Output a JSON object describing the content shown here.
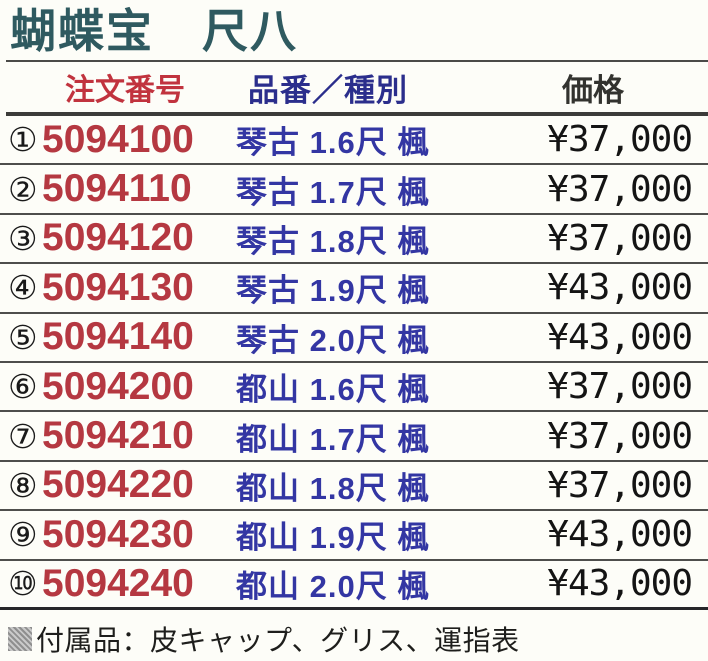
{
  "page": {
    "title": "蝴蝶宝　尺八",
    "background_color": "#fdfdf8",
    "title_color": "#2f5a60"
  },
  "table": {
    "headers": {
      "order_no": "注文番号",
      "product": "品番／種別",
      "price": "価格"
    },
    "colors": {
      "header_order_no": "#c1333e",
      "header_product": "#2b2e8c",
      "header_price": "#33332f",
      "row_order_no": "#b53841",
      "row_product": "#3336a3",
      "row_price": "#141414",
      "rule_line": "#4e4e4c"
    },
    "rows": [
      {
        "index": "①",
        "order_no": "5094100",
        "product": "琴古 1.6尺 楓",
        "price": "¥37,000"
      },
      {
        "index": "②",
        "order_no": "5094110",
        "product": "琴古 1.7尺 楓",
        "price": "¥37,000"
      },
      {
        "index": "③",
        "order_no": "5094120",
        "product": "琴古 1.8尺 楓",
        "price": "¥37,000"
      },
      {
        "index": "④",
        "order_no": "5094130",
        "product": "琴古 1.9尺 楓",
        "price": "¥43,000"
      },
      {
        "index": "⑤",
        "order_no": "5094140",
        "product": "琴古 2.0尺 楓",
        "price": "¥43,000"
      },
      {
        "index": "⑥",
        "order_no": "5094200",
        "product": "都山 1.6尺 楓",
        "price": "¥37,000"
      },
      {
        "index": "⑦",
        "order_no": "5094210",
        "product": "都山 1.7尺 楓",
        "price": "¥37,000"
      },
      {
        "index": "⑧",
        "order_no": "5094220",
        "product": "都山 1.8尺 楓",
        "price": "¥37,000"
      },
      {
        "index": "⑨",
        "order_no": "5094230",
        "product": "都山 1.9尺 楓",
        "price": "¥43,000"
      },
      {
        "index": "⑩",
        "order_no": "5094240",
        "product": "都山 2.0尺 楓",
        "price": "¥43,000"
      }
    ]
  },
  "footer": {
    "bullet_icon": "hatched-square",
    "note": "付属品：皮キャップ、グリス、運指表"
  }
}
